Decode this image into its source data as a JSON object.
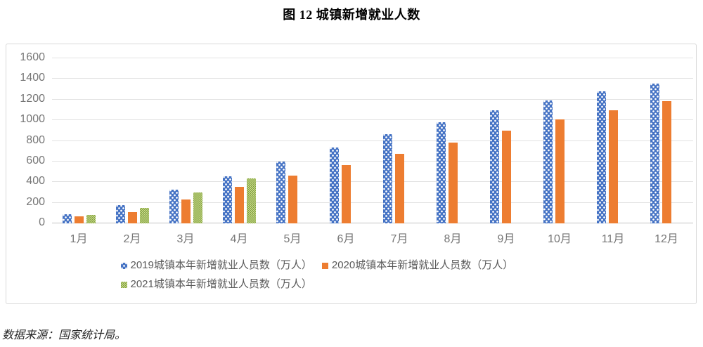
{
  "title": "图 12 城镇新增就业人数",
  "footer": {
    "source_note": "数据来源：国家统计局。"
  },
  "chart_data": {
    "type": "bar",
    "title": "图 12 城镇新增就业人数",
    "categories": [
      "1月",
      "2月",
      "3月",
      "4月",
      "5月",
      "6月",
      "7月",
      "8月",
      "9月",
      "10月",
      "11月",
      "12月"
    ],
    "series": [
      {
        "name": "2019城镇本年新增就业人员数（万人）",
        "color": "#4472C4",
        "pattern": "white-dots",
        "values": [
          90,
          174,
          324,
          459,
          597,
          737,
          867,
          984,
          1097,
          1193,
          1279,
          1352
        ]
      },
      {
        "name": "2020城镇本年新增就业人员数（万人）",
        "color": "#ED7D31",
        "pattern": "solid",
        "values": [
          66,
          108,
          229,
          354,
          460,
          564,
          671,
          781,
          898,
          1009,
          1099,
          1186
        ]
      },
      {
        "name": "2021城镇本年新增就业人员数（万人）",
        "color": "#A8BF60",
        "pattern": "checker",
        "values": [
          80,
          148,
          297,
          437,
          null,
          null,
          null,
          null,
          null,
          null,
          null,
          null
        ]
      }
    ],
    "xlabel": "",
    "ylabel": "",
    "ylim": [
      0,
      1600
    ],
    "yticks": [
      0,
      200,
      400,
      600,
      800,
      1000,
      1200,
      1400,
      1600
    ],
    "grid": true,
    "legend_position": "bottom",
    "gridline_color": "#E2E2E2",
    "axis_label_color": "#767676",
    "legend_text_color": "#595959"
  }
}
